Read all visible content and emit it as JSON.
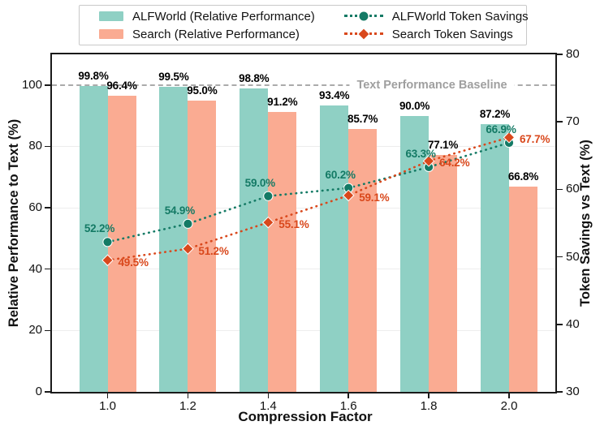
{
  "chart_data": {
    "type": "bar+line",
    "categories": [
      "1.0",
      "1.2",
      "1.4",
      "1.6",
      "1.8",
      "2.0"
    ],
    "x_axis": {
      "label": "Compression Factor"
    },
    "left_axis": {
      "label": "Relative Performance to Text (%)",
      "min": 0,
      "max": 110,
      "ticks": [
        0,
        20,
        40,
        60,
        80,
        100
      ],
      "gridlines": [
        20,
        40,
        60,
        80
      ]
    },
    "right_axis": {
      "label": "Token Savings vs Text (%)",
      "min": 30,
      "max": 80,
      "ticks": [
        30,
        40,
        50,
        60,
        70,
        80
      ]
    },
    "baseline": {
      "value": 100,
      "label": "Text Performance Baseline",
      "color": "#ababab"
    },
    "bar_series": [
      {
        "name": "ALFWorld (Relative Performance)",
        "color": "#8fd0c4",
        "values": [
          99.8,
          99.5,
          98.8,
          93.4,
          90.0,
          87.2
        ]
      },
      {
        "name": "Search (Relative Performance)",
        "color": "#faab92",
        "values": [
          96.4,
          95.0,
          91.2,
          85.7,
          77.1,
          66.8
        ]
      }
    ],
    "line_series": [
      {
        "name": "ALFWorld Token Savings",
        "color": "#147a65",
        "marker": "circle",
        "axis": "right",
        "values": [
          52.2,
          54.9,
          59.0,
          60.2,
          63.3,
          66.9
        ]
      },
      {
        "name": "Search Token Savings",
        "color": "#d9481c",
        "marker": "diamond",
        "axis": "right",
        "values": [
          49.5,
          51.2,
          55.1,
          59.1,
          64.2,
          67.7
        ]
      }
    ],
    "grid_on": true,
    "legend_position": "top-center"
  }
}
